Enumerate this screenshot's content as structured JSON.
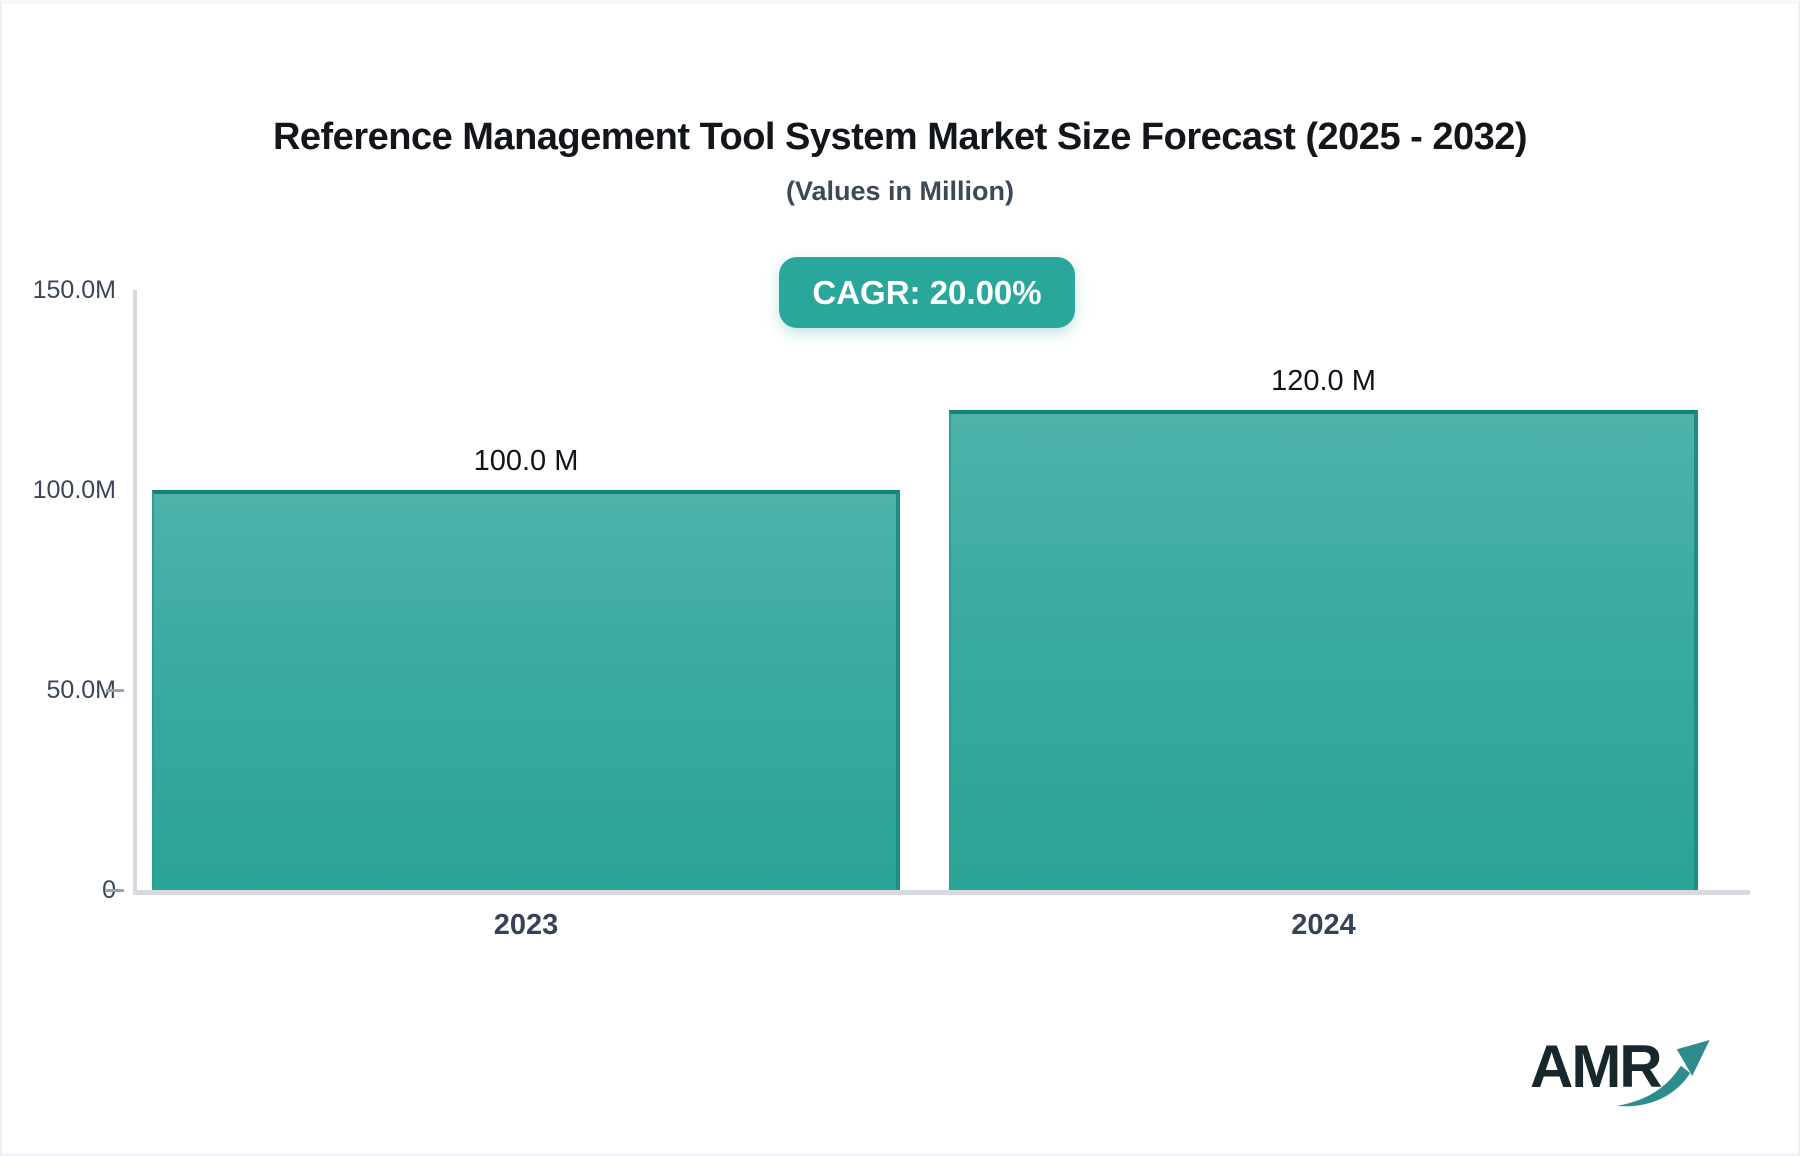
{
  "title": "Reference Management Tool System Market Size Forecast (2025 - 2032)",
  "subtitle": "(Values in Million)",
  "cagr_badge": "CAGR: 20.00%",
  "footer": {
    "logo_text": "AMR"
  },
  "colors": {
    "bar_top": "#4db3ab",
    "bar_bottom": "#2aa496",
    "bar_border": "#16837a",
    "badge_background": "#2aa79b",
    "axis_line": "#d6d9df",
    "tick_text": "#3b4758",
    "title_text": "#12161b",
    "logo_text": "#18272c",
    "logo_arrow": "#2e8c8d"
  },
  "chart_data": {
    "type": "bar",
    "categories": [
      "2023",
      "2024"
    ],
    "values": [
      100.0,
      120.0
    ],
    "value_labels": [
      "100.0 M",
      "120.0 M"
    ],
    "unit": "Million",
    "title": "Reference Management Tool System Market Size Forecast (2025 - 2032)",
    "subtitle": "(Values in Million)",
    "annotation": "CAGR: 20.00%",
    "ylim": [
      0,
      150
    ],
    "yticks": [
      {
        "label": "150.0M",
        "value": 150,
        "dash": false
      },
      {
        "label": "100.0M",
        "value": 100,
        "dash": false
      },
      {
        "label": "50.0M",
        "value": 50,
        "dash": true
      },
      {
        "label": "0",
        "value": 0,
        "dash": true
      }
    ],
    "grid": false,
    "legend": false,
    "bar_label_position": "above"
  }
}
